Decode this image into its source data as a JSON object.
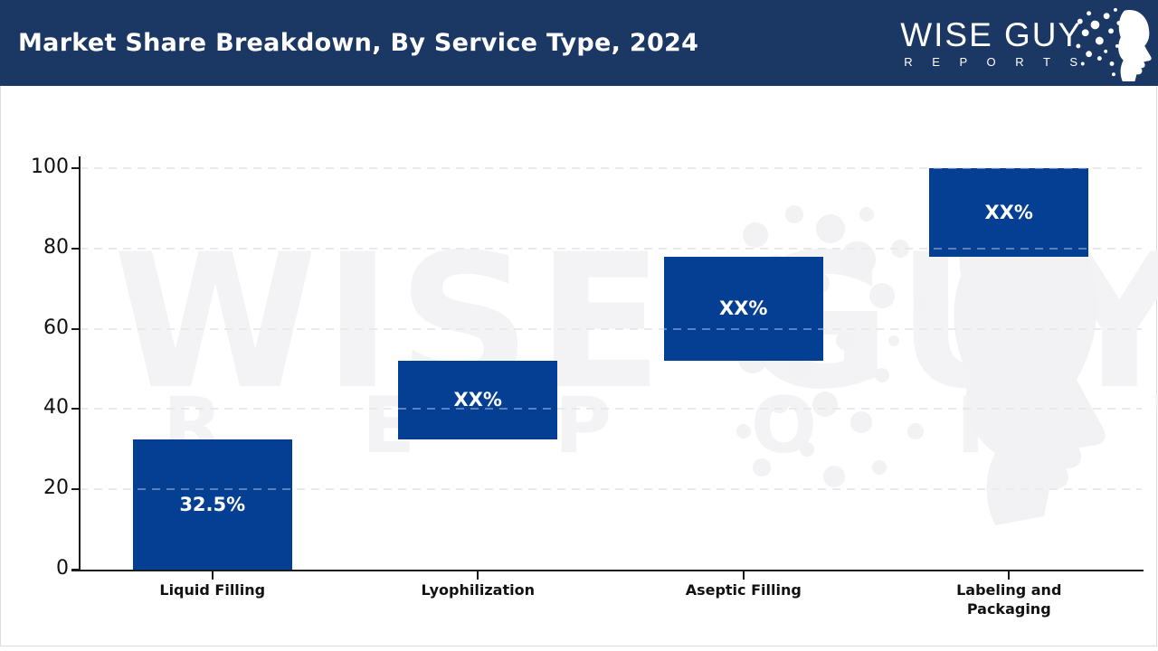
{
  "header": {
    "title": "Market Share Breakdown, By Service Type, 2024",
    "logo": {
      "wordmark": "WISE GUY",
      "subtext": "R E P O R T S"
    }
  },
  "watermark": {
    "line1": "WISE GUY",
    "line2": "R E P O R T S"
  },
  "chart_data": {
    "type": "bar",
    "subtype": "waterfall",
    "title": "Market Share Breakdown, By Service Type, 2024",
    "categories": [
      "Liquid Filling",
      "Lyophilization",
      "Aseptic Filling",
      "Labeling and Packaging"
    ],
    "segments": [
      {
        "category": "Liquid Filling",
        "start": 0,
        "end": 32.5,
        "label": "32.5%"
      },
      {
        "category": "Lyophilization",
        "start": 32.5,
        "end": 52,
        "label": "XX%"
      },
      {
        "category": "Aseptic Filling",
        "start": 52,
        "end": 78,
        "label": "XX%"
      },
      {
        "category": "Labeling and Packaging",
        "start": 78,
        "end": 100,
        "label": "XX%"
      }
    ],
    "xlabel": "",
    "ylabel": "",
    "ylim": [
      0,
      100
    ],
    "yticks": [
      0,
      20,
      40,
      60,
      80,
      100
    ],
    "grid": {
      "horizontal": true,
      "style": "dashed"
    },
    "legend": "none",
    "colors": {
      "bar": "#053f94",
      "bar_label": "#ffffff",
      "axis": "#1a1a1a",
      "gridline": "#dedede",
      "header_bg": "#1b3764",
      "header_text": "#ffffff",
      "watermark": "#f3f3f5"
    }
  }
}
